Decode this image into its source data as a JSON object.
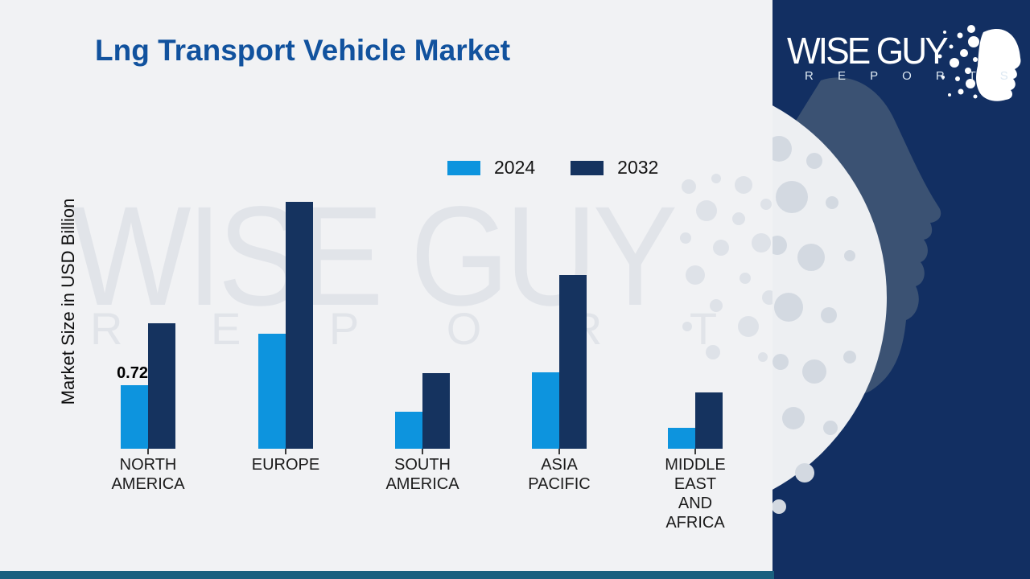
{
  "title": "Lng Transport Vehicle Market",
  "ylabel": "Market Size in USD Billion",
  "legend": [
    {
      "label": "2024",
      "color": "#0d94de"
    },
    {
      "label": "2032",
      "color": "#15335f"
    }
  ],
  "chart_data": {
    "type": "bar",
    "title": "Lng Transport Vehicle Market",
    "ylabel": "Market Size in USD Billion",
    "xlabel": "",
    "categories": [
      "NORTH AMERICA",
      "EUROPE",
      "SOUTH AMERICA",
      "ASIA PACIFIC",
      "MIDDLE EAST AND AFRICA"
    ],
    "category_lines": [
      [
        "NORTH",
        "AMERICA"
      ],
      [
        "EUROPE"
      ],
      [
        "SOUTH",
        "AMERICA"
      ],
      [
        "ASIA",
        "PACIFIC"
      ],
      [
        "MIDDLE",
        "EAST",
        "AND",
        "AFRICA"
      ]
    ],
    "series": [
      {
        "name": "2024",
        "color": "#0d94de",
        "values": [
          0.72,
          1.3,
          0.42,
          0.86,
          0.24
        ]
      },
      {
        "name": "2032",
        "color": "#15335f",
        "values": [
          1.42,
          2.79,
          0.85,
          1.96,
          0.64
        ]
      }
    ],
    "data_labels": [
      {
        "series": "2024",
        "category": "NORTH AMERICA",
        "text": "0.72"
      }
    ],
    "units": "USD Billion",
    "grid": false,
    "axis_line": false,
    "legend_position": "top"
  },
  "watermark": {
    "line1": "WISE GUY",
    "line2": "R E P O R T S"
  },
  "logo": {
    "line1": "WISE GUY",
    "line2": "R E P O R T S"
  },
  "colors": {
    "page_background": "#f1f2f4",
    "title_blue": "#11529e",
    "bar_2024": "#0d94de",
    "bar_2032": "#15335f",
    "panel_navy": "#122f62",
    "face_slate": "#3b5273",
    "circle_light": "#edeff2",
    "circle_dots": "#d3d9e1",
    "watermark_gray": "#e1e4e9",
    "teal_accent": "#1a607f",
    "logo_white": "#ffffff"
  }
}
